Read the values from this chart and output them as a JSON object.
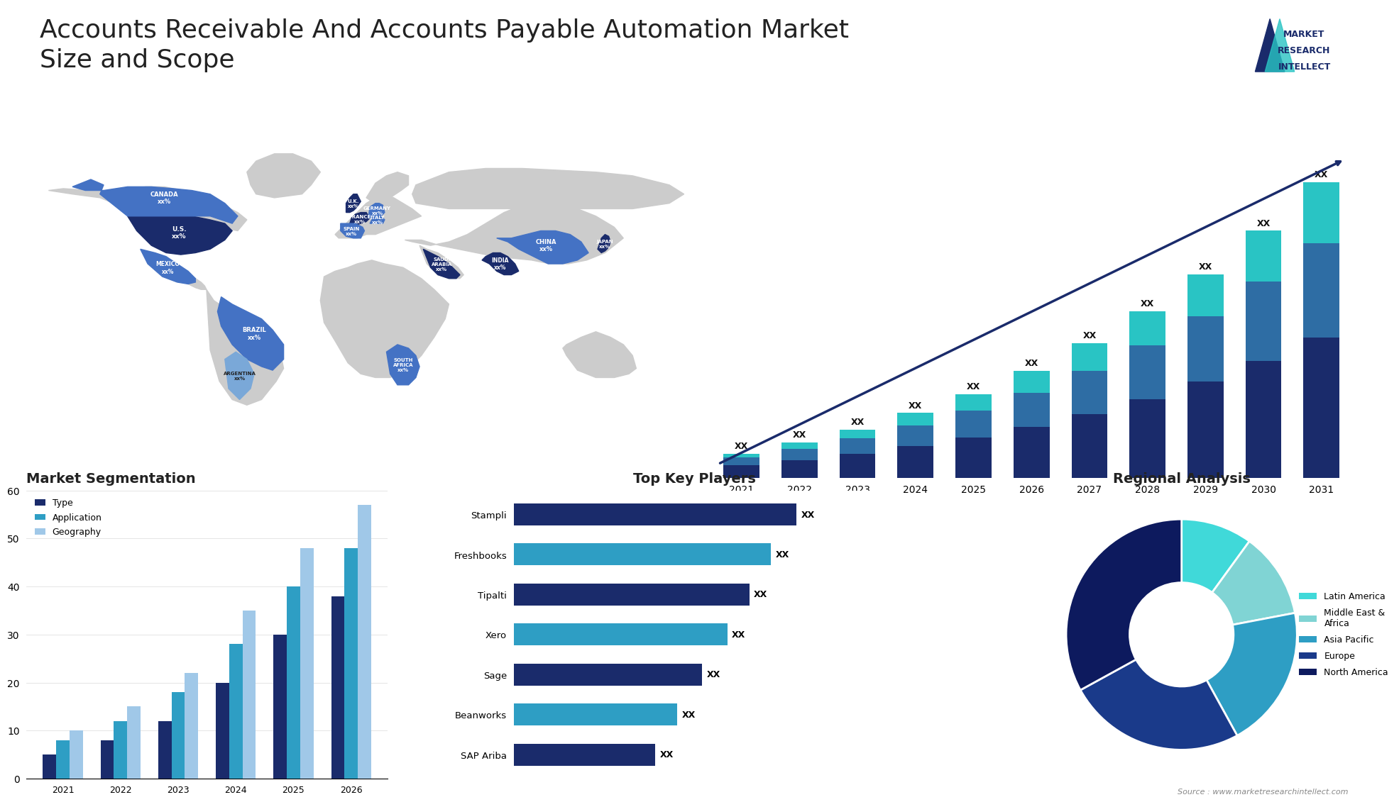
{
  "title_line1": "Accounts Receivable And Accounts Payable Automation Market",
  "title_line2": "Size and Scope",
  "title_fontsize": 26,
  "title_color": "#222222",
  "bar_years": [
    2021,
    2022,
    2023,
    2024,
    2025,
    2026,
    2027,
    2028,
    2029,
    2030,
    2031
  ],
  "bar_seg1": [
    1.0,
    1.4,
    1.9,
    2.5,
    3.2,
    4.0,
    5.0,
    6.2,
    7.6,
    9.2,
    11.0
  ],
  "bar_seg2": [
    0.6,
    0.9,
    1.2,
    1.6,
    2.1,
    2.7,
    3.4,
    4.2,
    5.1,
    6.2,
    7.4
  ],
  "bar_seg3": [
    0.3,
    0.5,
    0.7,
    1.0,
    1.3,
    1.7,
    2.2,
    2.7,
    3.3,
    4.0,
    4.8
  ],
  "bar_color1": "#1a2b6b",
  "bar_color2": "#2e6da4",
  "bar_color3": "#29c4c4",
  "bar_label": "XX",
  "seg_years": [
    "2021",
    "2022",
    "2023",
    "2024",
    "2025",
    "2026"
  ],
  "seg_type": [
    5,
    8,
    12,
    20,
    30,
    38
  ],
  "seg_application": [
    8,
    12,
    18,
    28,
    40,
    48
  ],
  "seg_geography": [
    10,
    15,
    22,
    35,
    48,
    57
  ],
  "seg_color_type": "#1a2b6b",
  "seg_color_application": "#2e9ec4",
  "seg_color_geography": "#a0c8e8",
  "seg_title": "Market Segmentation",
  "seg_ylim": [
    0,
    60
  ],
  "seg_yticks": [
    0,
    10,
    20,
    30,
    40,
    50,
    60
  ],
  "players": [
    "Stampli",
    "Freshbooks",
    "Tipalti",
    "Xero",
    "Sage",
    "Beanworks",
    "SAP Ariba"
  ],
  "players_val": [
    90,
    82,
    75,
    68,
    60,
    52,
    45
  ],
  "players_color1": "#1a2b6b",
  "players_color2": "#2e9ec4",
  "players_title": "Top Key Players",
  "players_label": "XX",
  "pie_values": [
    10,
    12,
    20,
    25,
    33
  ],
  "pie_colors": [
    "#40d9d9",
    "#80d4d4",
    "#2e9ec4",
    "#1a3a8a",
    "#0d1a5e"
  ],
  "pie_labels": [
    "Latin America",
    "Middle East &\nAfrica",
    "Asia Pacific",
    "Europe",
    "North America"
  ],
  "pie_title": "Regional Analysis",
  "map_highlight_dark": "#1a2b6b",
  "map_highlight_medium": "#4472c4",
  "map_highlight_light": "#7aa8d8",
  "source_text": "Source : www.marketresearchintellect.com",
  "logo_text": "MARKET\nRESEARCH\nINTELLECT",
  "bg_color": "#ffffff",
  "text_color": "#222222"
}
